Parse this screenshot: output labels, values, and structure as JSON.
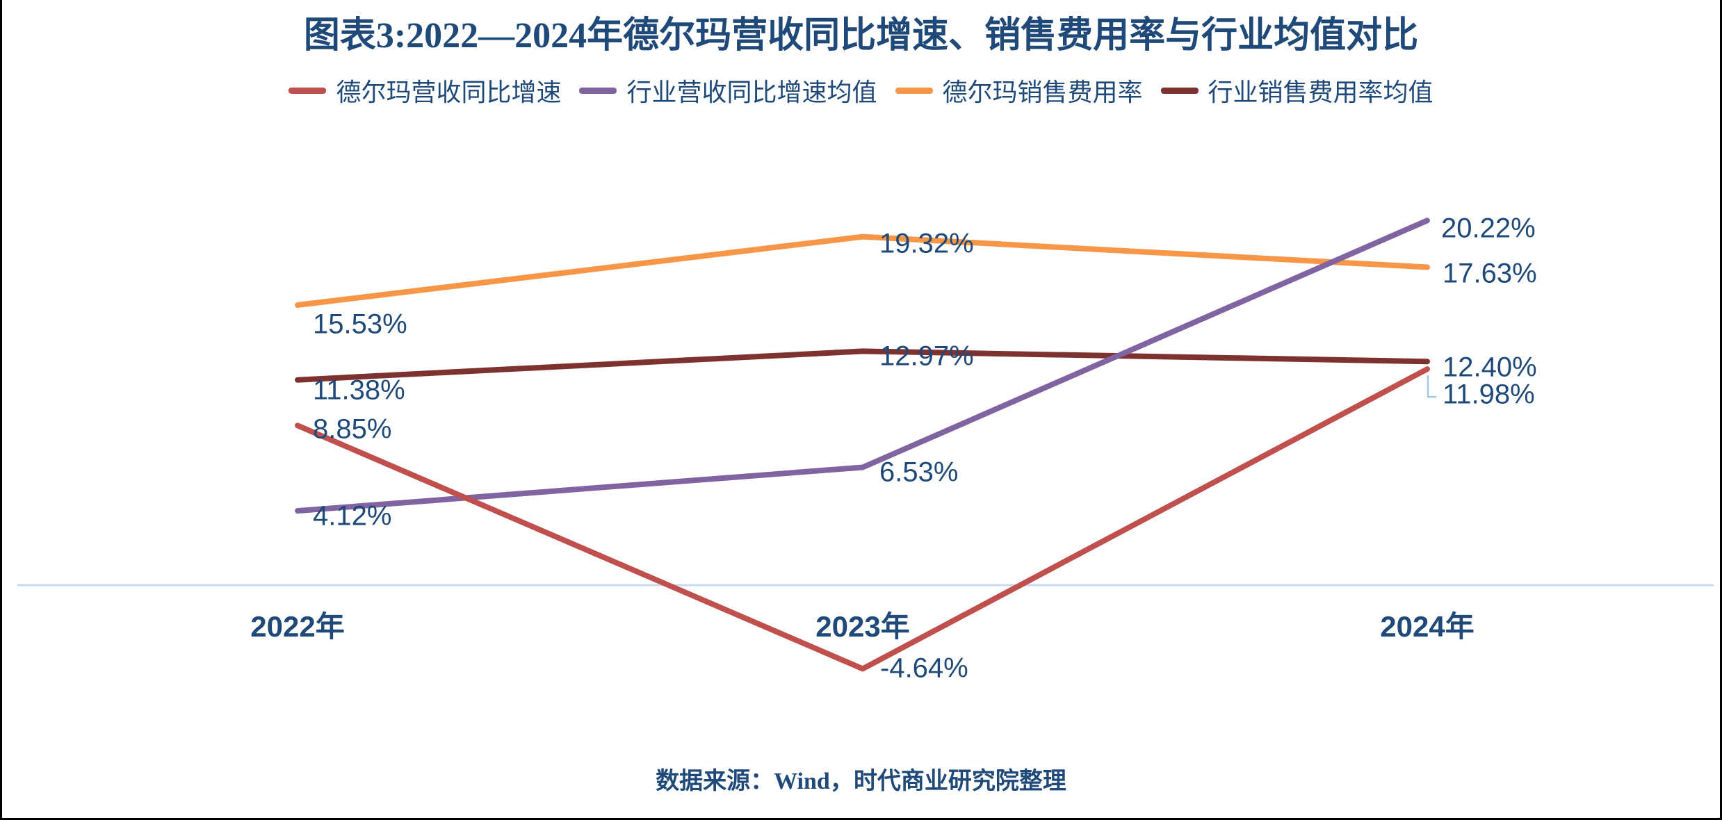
{
  "title": "图表3:2022—2024年德尔玛营收同比增速、销售费用率与行业均值对比",
  "source": "数据来源：Wind，时代商业研究院整理",
  "colors": {
    "text_navy": "#1F4979",
    "axis_line": "#C7DAF0",
    "leader_line": "#A6C3E8",
    "series_red": "#C0504D",
    "series_purple": "#8064A2",
    "series_orange": "#F79646",
    "series_maroon": "#7E3230"
  },
  "chart_data": {
    "type": "line",
    "unit": "%",
    "categories": [
      "2022年",
      "2023年",
      "2024年"
    ],
    "series": [
      {
        "name": "德尔玛营收同比增速",
        "color": "#C0504D",
        "values": [
          8.85,
          -4.64,
          11.98
        ],
        "labels": [
          "8.85%",
          "-4.64%",
          "11.98%"
        ]
      },
      {
        "name": "行业营收同比增速均值",
        "color": "#8064A2",
        "values": [
          4.12,
          6.53,
          20.22
        ],
        "labels": [
          "4.12%",
          "6.53%",
          "20.22%"
        ]
      },
      {
        "name": "德尔玛销售费用率",
        "color": "#F79646",
        "values": [
          15.53,
          19.32,
          17.63
        ],
        "labels": [
          "15.53%",
          "19.32%",
          "17.63%"
        ]
      },
      {
        "name": "行业销售费用率均值",
        "color": "#7E3230",
        "values": [
          11.38,
          12.97,
          12.4
        ],
        "labels": [
          "11.38%",
          "12.97%",
          "12.40%"
        ]
      }
    ],
    "axis": {
      "zero_line_shown": true,
      "gridlines": false,
      "legend_position": "top"
    }
  }
}
